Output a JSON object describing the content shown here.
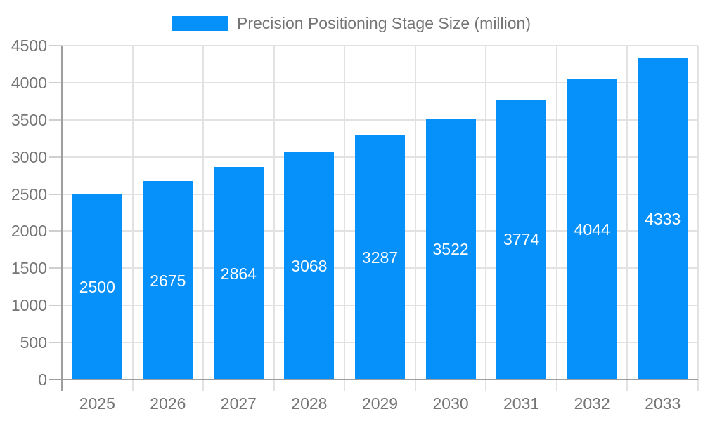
{
  "legend": {
    "label": "Precision Positioning Stage Size (million)",
    "swatch_color": "#0690fa"
  },
  "chart_data": {
    "type": "bar",
    "title": "Precision Positioning Stage Size (million)",
    "categories": [
      "2025",
      "2026",
      "2027",
      "2028",
      "2029",
      "2030",
      "2031",
      "2032",
      "2033"
    ],
    "values": [
      2500,
      2675,
      2864,
      3068,
      3287,
      3522,
      3774,
      4044,
      4333
    ],
    "xlabel": "",
    "ylabel": "",
    "ylim": [
      0,
      4500
    ],
    "ytick_step": 500,
    "grid": true,
    "legend_position": "top",
    "colors": {
      "bar": "#0690fa",
      "bar_label": "#ffffff",
      "grid": "#e2e2e2",
      "axis": "#9e9e9e",
      "tick": "#cfcfcf",
      "tick_label": "#757575"
    }
  }
}
